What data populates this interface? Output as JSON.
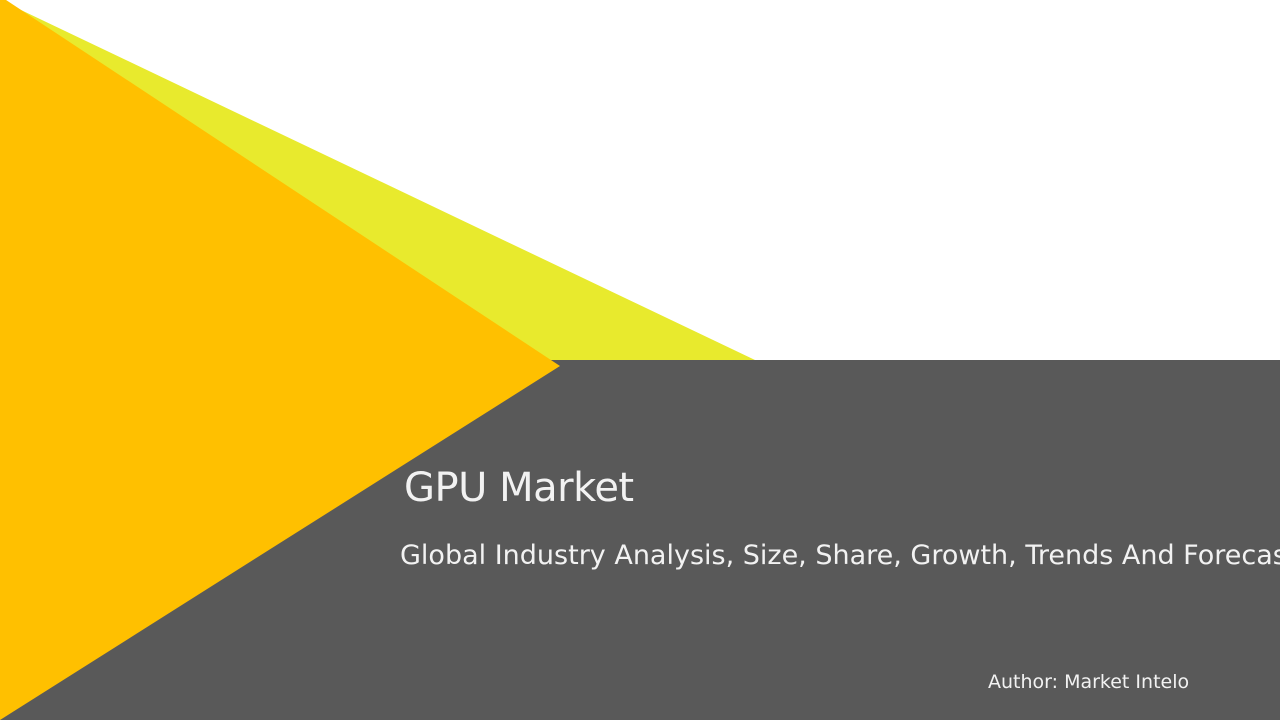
{
  "slide": {
    "title": "GPU Market",
    "subtitle": "Global Industry Analysis, Size, Share, Growth, Trends And Forecast",
    "author_label": "Author: Market Intelo"
  },
  "colors": {
    "accent_orange": "#ffc000",
    "accent_yellow": "#e8ea2d",
    "band_gray": "#595959",
    "text_light": "#f2f2f2",
    "background": "#ffffff"
  }
}
